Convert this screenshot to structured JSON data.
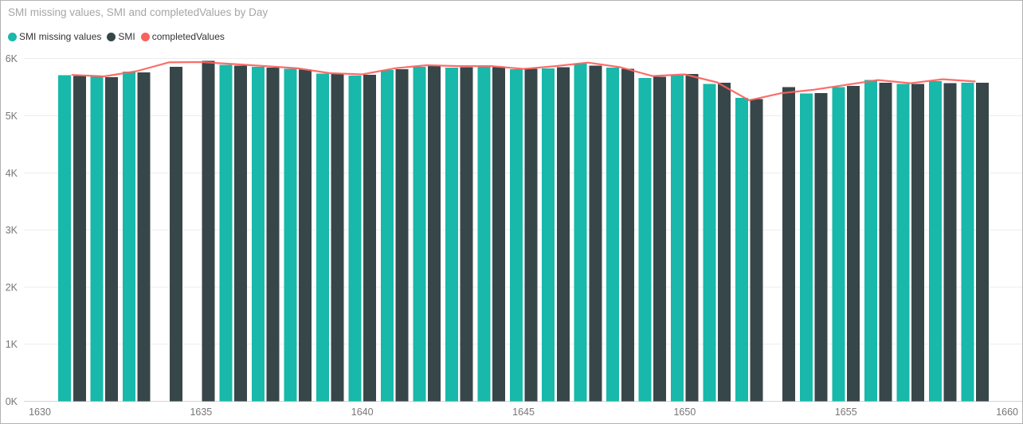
{
  "header": {
    "title": "SMI missing values, SMI and completedValues by Day"
  },
  "legend": {
    "items": [
      {
        "label": "SMI missing values",
        "color": "#18B8AA",
        "marker": "circle-icon"
      },
      {
        "label": "SMI",
        "color": "#374649",
        "marker": "circle-icon"
      },
      {
        "label": "completedValues",
        "color": "#FA625E",
        "marker": "circle-icon"
      }
    ]
  },
  "chart_data": {
    "type": "combo-bar-line",
    "title": "SMI missing values, SMI and completedValues by Day",
    "xlabel": "Day",
    "ylabel": "",
    "grid": true,
    "legend_position": "top-left",
    "x_axis": {
      "min": 1630,
      "max": 1660,
      "ticks": [
        "1630",
        "1635",
        "1640",
        "1645",
        "1650",
        "1655",
        "1660"
      ]
    },
    "y_axis": {
      "min": 0,
      "max": 6000,
      "ticks": [
        "0K",
        "1K",
        "2K",
        "3K",
        "4K",
        "5K",
        "6K"
      ]
    },
    "categories": [
      1631,
      1632,
      1633,
      1634,
      1635,
      1636,
      1637,
      1638,
      1639,
      1640,
      1641,
      1642,
      1643,
      1644,
      1645,
      1646,
      1647,
      1648,
      1649,
      1650,
      1651,
      1652,
      1653,
      1654,
      1655,
      1656,
      1657,
      1658,
      1659
    ],
    "series": [
      {
        "name": "SMI missing values",
        "type": "bar",
        "color": "#18B8AA",
        "values": [
          5710,
          5690,
          5775,
          null,
          null,
          5895,
          5860,
          5825,
          5740,
          5705,
          5800,
          5860,
          5845,
          5860,
          5815,
          5830,
          5910,
          5840,
          5660,
          5710,
          5560,
          5310,
          null,
          5390,
          5505,
          5630,
          5560,
          5605,
          5580
        ]
      },
      {
        "name": "SMI",
        "type": "bar",
        "color": "#374649",
        "values": [
          5695,
          5675,
          5760,
          5860,
          5960,
          5880,
          5845,
          5810,
          5730,
          5720,
          5815,
          5870,
          5850,
          5850,
          5825,
          5850,
          5880,
          5820,
          5685,
          5730,
          5580,
          5290,
          5500,
          5400,
          5525,
          5580,
          5555,
          5570,
          5580
        ]
      },
      {
        "name": "completedValues",
        "type": "line",
        "color": "#FA625E",
        "values": [
          5715,
          5690,
          5780,
          5935,
          5940,
          5905,
          5870,
          5830,
          5745,
          5725,
          5830,
          5885,
          5870,
          5870,
          5820,
          5870,
          5930,
          5850,
          5695,
          5725,
          5585,
          5270,
          5395,
          5455,
          5540,
          5625,
          5570,
          5640,
          5600
        ]
      }
    ]
  },
  "style": {
    "gridline_color": "#ececec",
    "axis_line_color": "#d6d6d6",
    "tick_label_color": "#777777"
  }
}
